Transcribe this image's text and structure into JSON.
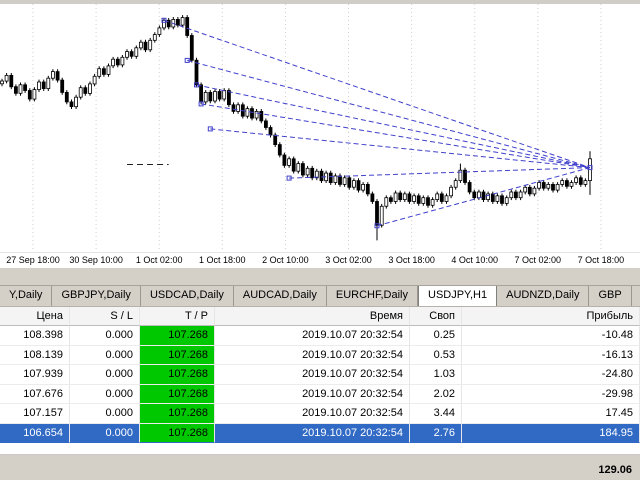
{
  "chart_data": {
    "type": "candlestick",
    "symbol": "USDJPY",
    "timeframe": "H1",
    "price_range": [
      106.42,
      108.95
    ],
    "x_labels": [
      "27 Sep 18:00",
      "30 Sep 10:00",
      "1 Oct 02:00",
      "1 Oct 18:00",
      "2 Oct 10:00",
      "3 Oct 02:00",
      "3 Oct 18:00",
      "4 Oct 10:00",
      "7 Oct 02:00",
      "7 Oct 18:00"
    ],
    "first_open": 108.15,
    "closes": [
      108.18,
      108.24,
      108.12,
      108.05,
      108.14,
      108.08,
      107.99,
      108.09,
      108.17,
      108.1,
      108.21,
      108.28,
      108.19,
      108.06,
      107.96,
      107.91,
      108.01,
      108.11,
      108.05,
      108.15,
      108.23,
      108.31,
      108.25,
      108.34,
      108.41,
      108.35,
      108.43,
      108.49,
      108.44,
      108.53,
      108.59,
      108.51,
      108.61,
      108.67,
      108.74,
      108.82,
      108.75,
      108.83,
      108.77,
      108.85,
      108.66,
      108.4,
      108.14,
      107.96,
      108.06,
      107.97,
      108.07,
      107.99,
      108.08,
      107.93,
      107.86,
      107.93,
      107.81,
      107.89,
      107.79,
      107.86,
      107.76,
      107.69,
      107.61,
      107.51,
      107.4,
      107.29,
      107.36,
      107.23,
      107.31,
      107.19,
      107.26,
      107.16,
      107.23,
      107.13,
      107.21,
      107.11,
      107.18,
      107.09,
      107.16,
      107.06,
      107.13,
      107.03,
      107.09,
      106.99,
      106.91,
      106.66,
      106.86,
      106.95,
      106.91,
      107.0,
      106.93,
      106.99,
      106.91,
      106.97,
      106.89,
      106.95,
      106.87,
      106.93,
      106.99,
      106.91,
      106.97,
      107.06,
      107.13,
      107.24,
      107.11,
      107.01,
      106.95,
      107.01,
      106.93,
      106.99,
      106.91,
      106.97,
      106.89,
      106.95,
      107.01,
      106.95,
      107.01,
      107.06,
      106.99,
      107.05,
      107.11,
      107.05,
      107.09,
      107.03,
      107.09,
      107.13,
      107.07,
      107.11,
      107.16,
      107.09,
      107.13,
      107.36
    ],
    "wick_overrides": {
      "81": {
        "low": 106.5
      },
      "99": {
        "high": 107.31
      },
      "127": {
        "high": 107.44,
        "low": 106.98
      }
    },
    "trendlines": {
      "color": "#4040cc",
      "target": {
        "index": 127,
        "price": 107.268
      },
      "anchors": [
        {
          "index": 35,
          "price": 108.82
        },
        {
          "index": 40,
          "price": 108.398
        },
        {
          "index": 42,
          "price": 108.139
        },
        {
          "index": 43,
          "price": 107.939
        },
        {
          "index": 45,
          "price": 107.676
        },
        {
          "index": 62,
          "price": 107.157
        },
        {
          "index": 81,
          "price": 106.654
        }
      ]
    },
    "dash_marker": {
      "from_index": 27,
      "to_index": 36,
      "price": 107.3
    },
    "grid_color": "#cdcdcd",
    "candle_color": "#000000"
  },
  "tabs": {
    "items": [
      {
        "label": "Y,Daily",
        "active": false
      },
      {
        "label": "GBPJPY,Daily",
        "active": false
      },
      {
        "label": "USDCAD,Daily",
        "active": false
      },
      {
        "label": "AUDCAD,Daily",
        "active": false
      },
      {
        "label": "EURCHF,Daily",
        "active": false
      },
      {
        "label": "USDJPY,H1",
        "active": true
      },
      {
        "label": "AUDNZD,Daily",
        "active": false
      },
      {
        "label": "GBP",
        "active": false
      }
    ]
  },
  "terminal": {
    "headers": [
      "Цена",
      "S / L",
      "T / P",
      "Время",
      "Своп",
      "Прибыль"
    ],
    "rows": [
      [
        "108.398",
        "0.000",
        "107.268",
        "2019.10.07 20:32:54",
        "0.25",
        "-10.48"
      ],
      [
        "108.139",
        "0.000",
        "107.268",
        "2019.10.07 20:32:54",
        "0.53",
        "-16.13"
      ],
      [
        "107.939",
        "0.000",
        "107.268",
        "2019.10.07 20:32:54",
        "1.03",
        "-24.80"
      ],
      [
        "107.676",
        "0.000",
        "107.268",
        "2019.10.07 20:32:54",
        "2.02",
        "-29.98"
      ],
      [
        "107.157",
        "0.000",
        "107.268",
        "2019.10.07 20:32:54",
        "3.44",
        "17.45"
      ],
      [
        "106.654",
        "0.000",
        "107.268",
        "2019.10.07 20:32:54",
        "2.76",
        "184.95"
      ]
    ],
    "selected_row": 5,
    "colors": {
      "tp_bg": "#00c800",
      "selected_bg": "#316ac5"
    },
    "total_profit": "129.06"
  }
}
